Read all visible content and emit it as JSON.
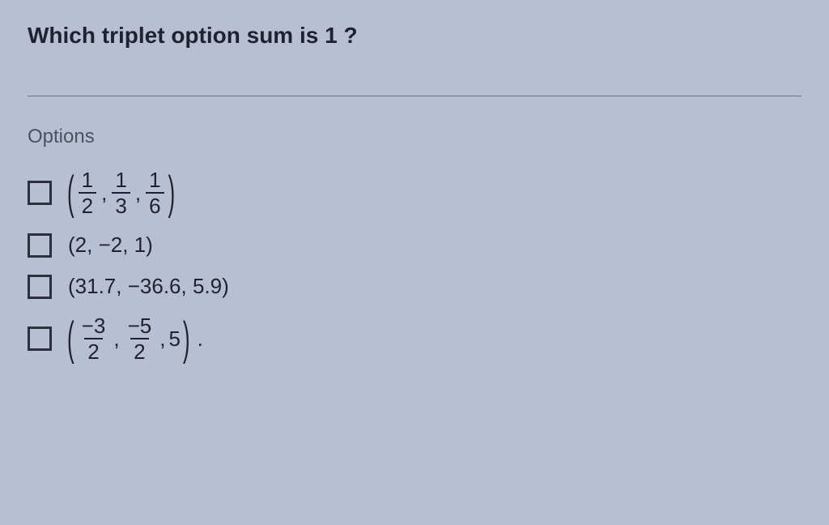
{
  "layout": {
    "background_color": "#b9bfd2",
    "text_color": "#1e2233",
    "question_fontsize": 28,
    "options_label_fontsize": 24,
    "options_label_color": "#4a5263",
    "option_fontsize": 26,
    "checkbox_size": 30,
    "checkbox_border_width": 3,
    "checkbox_border_color": "#2b3040",
    "rule_color": "#6c7388",
    "rule_width": 1,
    "frac_bar_color": "#1e2233",
    "frac_bar_width": 2,
    "big_paren_scale": 2.2
  },
  "question": "Which triplet option sum is 1 ?",
  "options_label": "Options",
  "options": [
    {
      "type": "fractions",
      "items": [
        {
          "num": "1",
          "den": "2"
        },
        {
          "num": "1",
          "den": "3"
        },
        {
          "num": "1",
          "den": "6"
        }
      ],
      "trailing": ""
    },
    {
      "type": "plain",
      "text": "(2, −2, 1)"
    },
    {
      "type": "plain",
      "text": "(31.7, −36.6, 5.9)"
    },
    {
      "type": "fractions",
      "items": [
        {
          "num": "−3",
          "den": "2"
        },
        {
          "num": "−5",
          "den": "2"
        },
        {
          "plain": "5"
        }
      ],
      "trailing": "."
    }
  ]
}
